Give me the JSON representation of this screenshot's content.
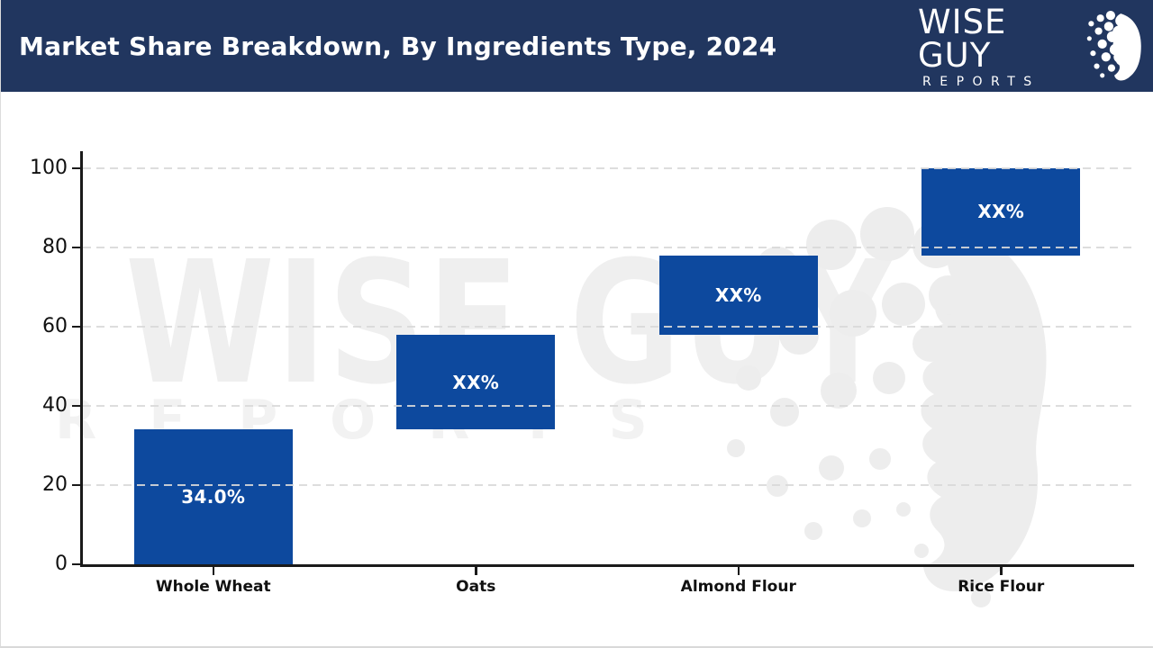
{
  "header": {
    "title": "Market Share Breakdown, By Ingredients Type, 2024",
    "logo": {
      "wordmark": "WISE GUY",
      "subtext": "REPORTS"
    }
  },
  "watermark": {
    "line1": "WISE GUY",
    "line2": "REPORTS"
  },
  "colors": {
    "header_bg": "#21365f",
    "bar": "#0d499e",
    "bar_label": "#ffffff",
    "axis": "#1a1a1a",
    "gridline": "#d9d9d9",
    "watermark": "#efefef"
  },
  "chart_data": {
    "type": "bar",
    "variant": "waterfall-breakdown",
    "title": "Market Share Breakdown, By Ingredients Type, 2024",
    "categories": [
      "Whole Wheat",
      "Oats",
      "Almond Flour",
      "Rice Flour"
    ],
    "segments": [
      {
        "category": "Whole Wheat",
        "start": 0,
        "end": 34,
        "value": 34,
        "label": "34.0%"
      },
      {
        "category": "Oats",
        "start": 34,
        "end": 58,
        "value": 24,
        "label": "XX%"
      },
      {
        "category": "Almond Flour",
        "start": 58,
        "end": 78,
        "value": 20,
        "label": "XX%"
      },
      {
        "category": "Rice Flour",
        "start": 78,
        "end": 100,
        "value": 22,
        "label": "XX%"
      }
    ],
    "xlabel": "",
    "ylabel": "",
    "yticks": [
      0,
      20,
      40,
      60,
      80,
      100
    ],
    "ylim": [
      0,
      104
    ],
    "grid": true,
    "grid_style": "dashed",
    "legend": "none",
    "units": "percent market share"
  }
}
